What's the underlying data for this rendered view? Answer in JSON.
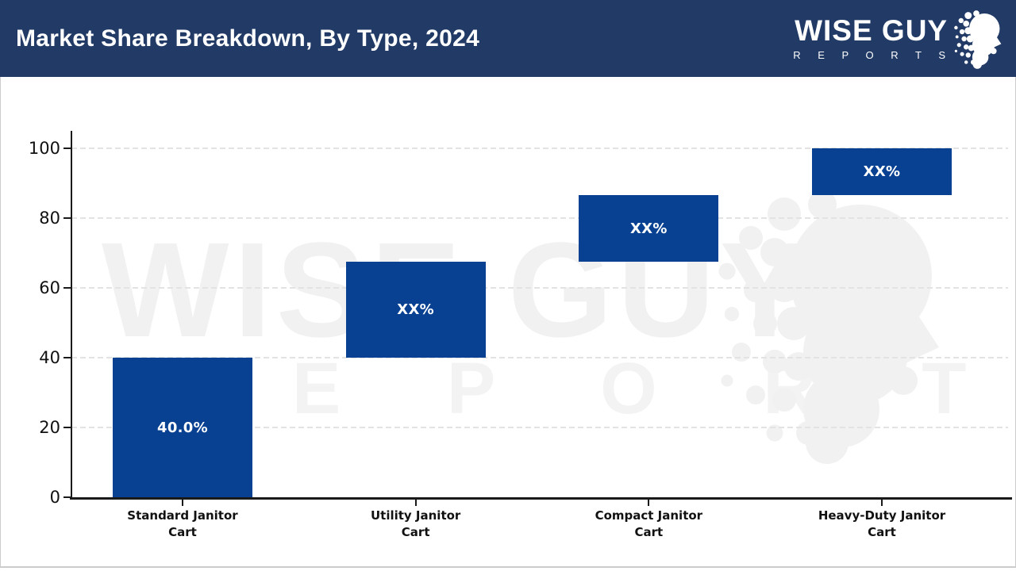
{
  "header": {
    "title": "Market Share Breakdown, By Type, 2024",
    "logo": {
      "wordmark": "WISE GUY",
      "reports": "R E P O R T S"
    }
  },
  "watermark": {
    "wordmark": "WISE GUY",
    "reports": "R E P O R T S"
  },
  "colors": {
    "header_bg": "#213a66",
    "bar": "#084191",
    "grid": "#e3e3e3",
    "axis": "#1a1a1a",
    "bar_label": "#ffffff",
    "watermark": "#f1f1f1",
    "hairline": "#cccccc"
  },
  "chart_data": {
    "type": "bar",
    "subtype": "waterfall",
    "title": "Market Share Breakdown, By Type, 2024",
    "categories": [
      "Standard Janitor Cart",
      "Utility Janitor Cart",
      "Compact Janitor Cart",
      "Heavy-Duty Janitor Cart"
    ],
    "category_lines": [
      [
        "Standard Janitor",
        "Cart"
      ],
      [
        "Utility Janitor",
        "Cart"
      ],
      [
        "Compact Janitor",
        "Cart"
      ],
      [
        "Heavy-Duty Janitor",
        "Cart"
      ]
    ],
    "series": [
      {
        "category": "Standard Janitor Cart",
        "start": 0,
        "end": 40,
        "label": "40.0%"
      },
      {
        "category": "Utility Janitor Cart",
        "start": 40,
        "end": 67.5,
        "label": "XX%"
      },
      {
        "category": "Compact Janitor Cart",
        "start": 67.5,
        "end": 86.5,
        "label": "XX%"
      },
      {
        "category": "Heavy-Duty Janitor Cart",
        "start": 86.5,
        "end": 100,
        "label": "XX%"
      }
    ],
    "yticks": [
      0,
      20,
      40,
      60,
      80,
      100
    ],
    "ylim": [
      0,
      105
    ],
    "xlabel": "",
    "ylabel": "",
    "grid": "horizontal-dashed",
    "legend": "none",
    "bar_color": "#084191"
  }
}
